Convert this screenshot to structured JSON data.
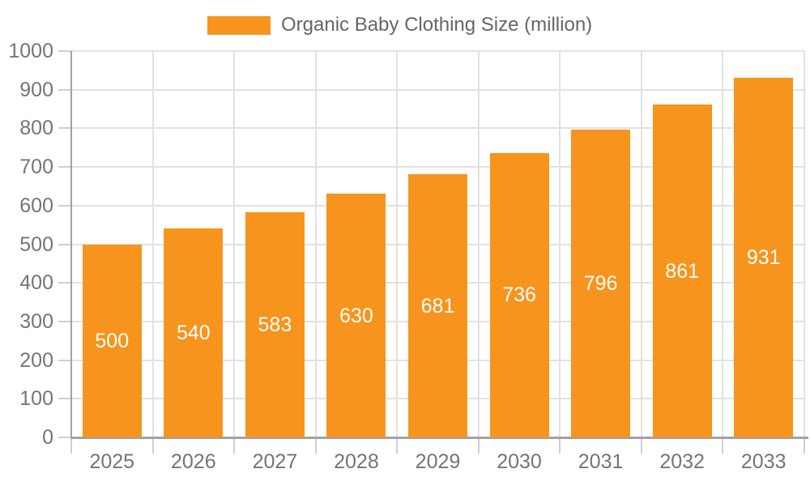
{
  "chart_data": {
    "type": "bar",
    "title": "",
    "legend": {
      "label": "Organic Baby Clothing Size (million)",
      "position": "top"
    },
    "categories": [
      "2025",
      "2026",
      "2027",
      "2028",
      "2029",
      "2030",
      "2031",
      "2032",
      "2033"
    ],
    "values": [
      500,
      540,
      583,
      630,
      681,
      736,
      796,
      861,
      931
    ],
    "xlabel": "",
    "ylabel": "",
    "ylim": [
      0,
      1000
    ],
    "yticks": [
      0,
      100,
      200,
      300,
      400,
      500,
      600,
      700,
      800,
      900,
      1000
    ],
    "grid": true,
    "bar_labels_visible": true,
    "colors": {
      "bar": "#F7941E",
      "bar_label_text": "#FFFFFF",
      "axis_text": "#757575",
      "legend_text": "#666666",
      "gridline": "#E2E2E2",
      "tick": "#CFCFCF",
      "axis_line": "#A2A2A2",
      "background": "#FFFFFF"
    }
  }
}
